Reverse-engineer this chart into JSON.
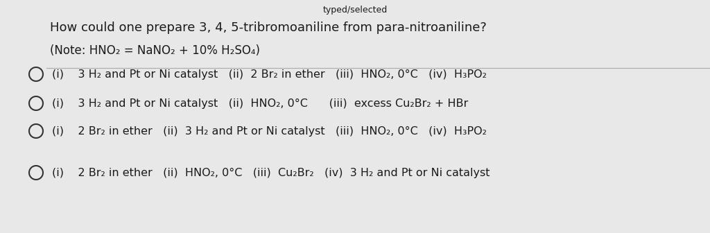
{
  "background_color": "#e8e8e8",
  "title_partial": "typed/selected",
  "question": "How could one prepare 3, 4, 5-tribromoaniline from para-nitroaniline?",
  "note": "(Note: HNO₂ = NaNO₂ + 10% H₂SO₄)",
  "options": [
    "(i)    3 H₂ and Pt or Ni catalyst   (ii)  2 Br₂ in ether   (iii)  HNO₂, 0°C   (iv)  H₃PO₂",
    "(i)    3 H₂ and Pt or Ni catalyst   (ii)  HNO₂, 0°C      (iii)  excess Cu₂Br₂ + HBr",
    "(i)    2 Br₂ in ether   (ii)  3 H₂ and Pt or Ni catalyst   (iii)  HNO₂, 0°C   (iv)  H₃PO₂",
    "(i)    2 Br₂ in ether   (ii)  HNO₂, 0°C   (iii)  Cu₂Br₂   (iv)  3 H₂ and Pt or Ni catalyst"
  ],
  "font_size_question": 13,
  "font_size_note": 12,
  "font_size_option": 11.5,
  "text_color": "#1a1a1a",
  "radio_color": "#333333"
}
